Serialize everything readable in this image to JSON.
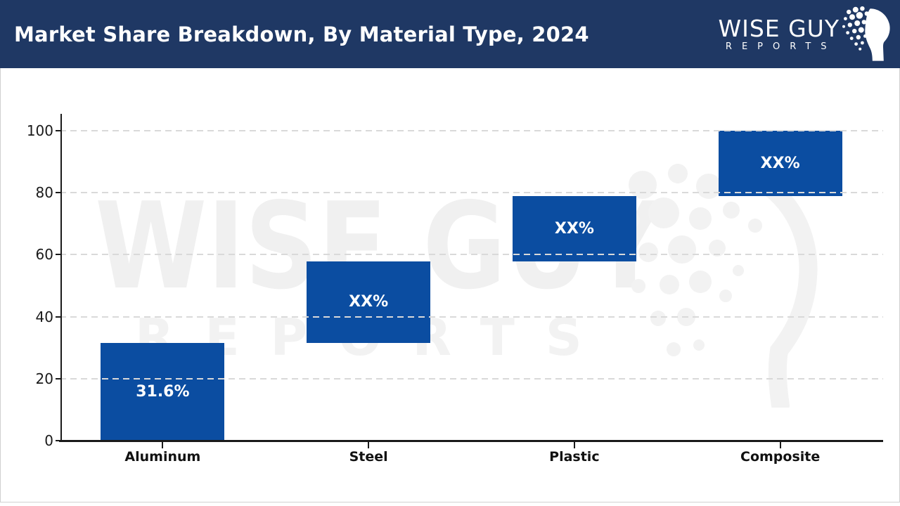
{
  "header": {
    "title": "Market Share Breakdown, By Material Type, 2024",
    "bg_color": "#1f3864",
    "logo": {
      "line1": "WISE GUY",
      "line2": "REPORTS"
    }
  },
  "watermark": {
    "line1": "WISE GUY",
    "line2": "REPORTS"
  },
  "chart_data": {
    "type": "bar",
    "subtype": "waterfall",
    "title": "Market Share Breakdown, By Material Type, 2024",
    "categories": [
      "Aluminum",
      "Steel",
      "Plastic",
      "Composite"
    ],
    "segments": [
      {
        "category": "Aluminum",
        "start": 0,
        "end": 31.6,
        "value": 31.6,
        "label": "31.6%"
      },
      {
        "category": "Steel",
        "start": 31.6,
        "end": 57.8,
        "value": 26.2,
        "label": "XX%"
      },
      {
        "category": "Plastic",
        "start": 57.8,
        "end": 78.9,
        "value": 21.1,
        "label": "XX%"
      },
      {
        "category": "Composite",
        "start": 78.9,
        "end": 100,
        "value": 21.1,
        "label": "XX%"
      }
    ],
    "xlabel": "",
    "ylabel": "",
    "ylim": [
      0,
      100
    ],
    "yticks": [
      0,
      20,
      40,
      60,
      80,
      100
    ],
    "grid": true,
    "grid_style": "dashed",
    "legend": "none",
    "bar_color": "#0b4da1",
    "bar_label_color": "#ffffff",
    "axis_color": "#1a1a1a"
  }
}
